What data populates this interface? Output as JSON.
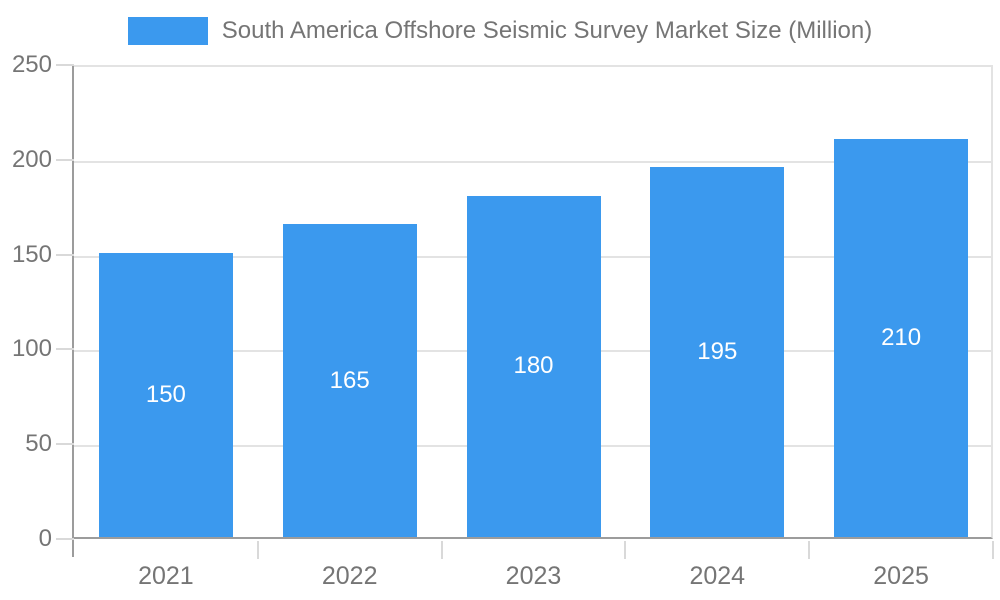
{
  "legend": {
    "label": "South America Offshore Seismic Survey Market Size (Million)"
  },
  "chart_data": {
    "type": "bar",
    "title": "South America Offshore Seismic Survey Market Size (Million)",
    "categories": [
      "2021",
      "2022",
      "2023",
      "2024",
      "2025"
    ],
    "values": [
      150,
      165,
      180,
      195,
      210
    ],
    "bar_labels": [
      "150",
      "165",
      "180",
      "195",
      "210"
    ],
    "xlabel": "",
    "ylabel": "",
    "ylim": [
      0,
      250
    ],
    "yticks": [
      0,
      50,
      100,
      150,
      200,
      250
    ],
    "grid": true,
    "legend_position": "top",
    "colors": {
      "bar": "#3b99ee",
      "bar_label": "#ffffff",
      "axis_text": "#757575",
      "gridline": "#e3e3e3",
      "axis_line": "#9c9c9c",
      "tick": "#d9d9d9"
    }
  }
}
